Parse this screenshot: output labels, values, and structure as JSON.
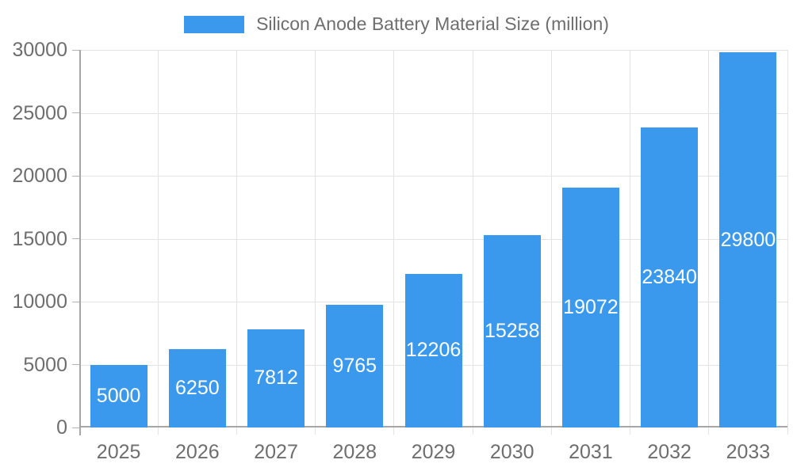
{
  "chart_data": {
    "type": "bar",
    "title": "Silicon Anode Battery Material Size (million)",
    "legend_entries": [
      "Silicon Anode Battery Material Size (million)"
    ],
    "legend_position": "top-center",
    "categories": [
      "2025",
      "2026",
      "2027",
      "2028",
      "2029",
      "2030",
      "2031",
      "2032",
      "2033"
    ],
    "values": [
      5000,
      6250,
      7812,
      9765,
      12206,
      15258,
      19072,
      23840,
      29800
    ],
    "bar_value_labels_visible": true,
    "xlabel": "",
    "ylabel": "",
    "ylim": [
      0,
      30000
    ],
    "yticks": [
      0,
      5000,
      10000,
      15000,
      20000,
      25000,
      30000
    ],
    "grid": true,
    "colors": {
      "bar": "#3A99EC",
      "bar_value_label": "#FFFFFF",
      "axis_line": "#A6A6A6",
      "gridline": "#E3E3E3",
      "tick_label": "#6E6E6E",
      "legend_text": "#6E6E6E"
    }
  }
}
